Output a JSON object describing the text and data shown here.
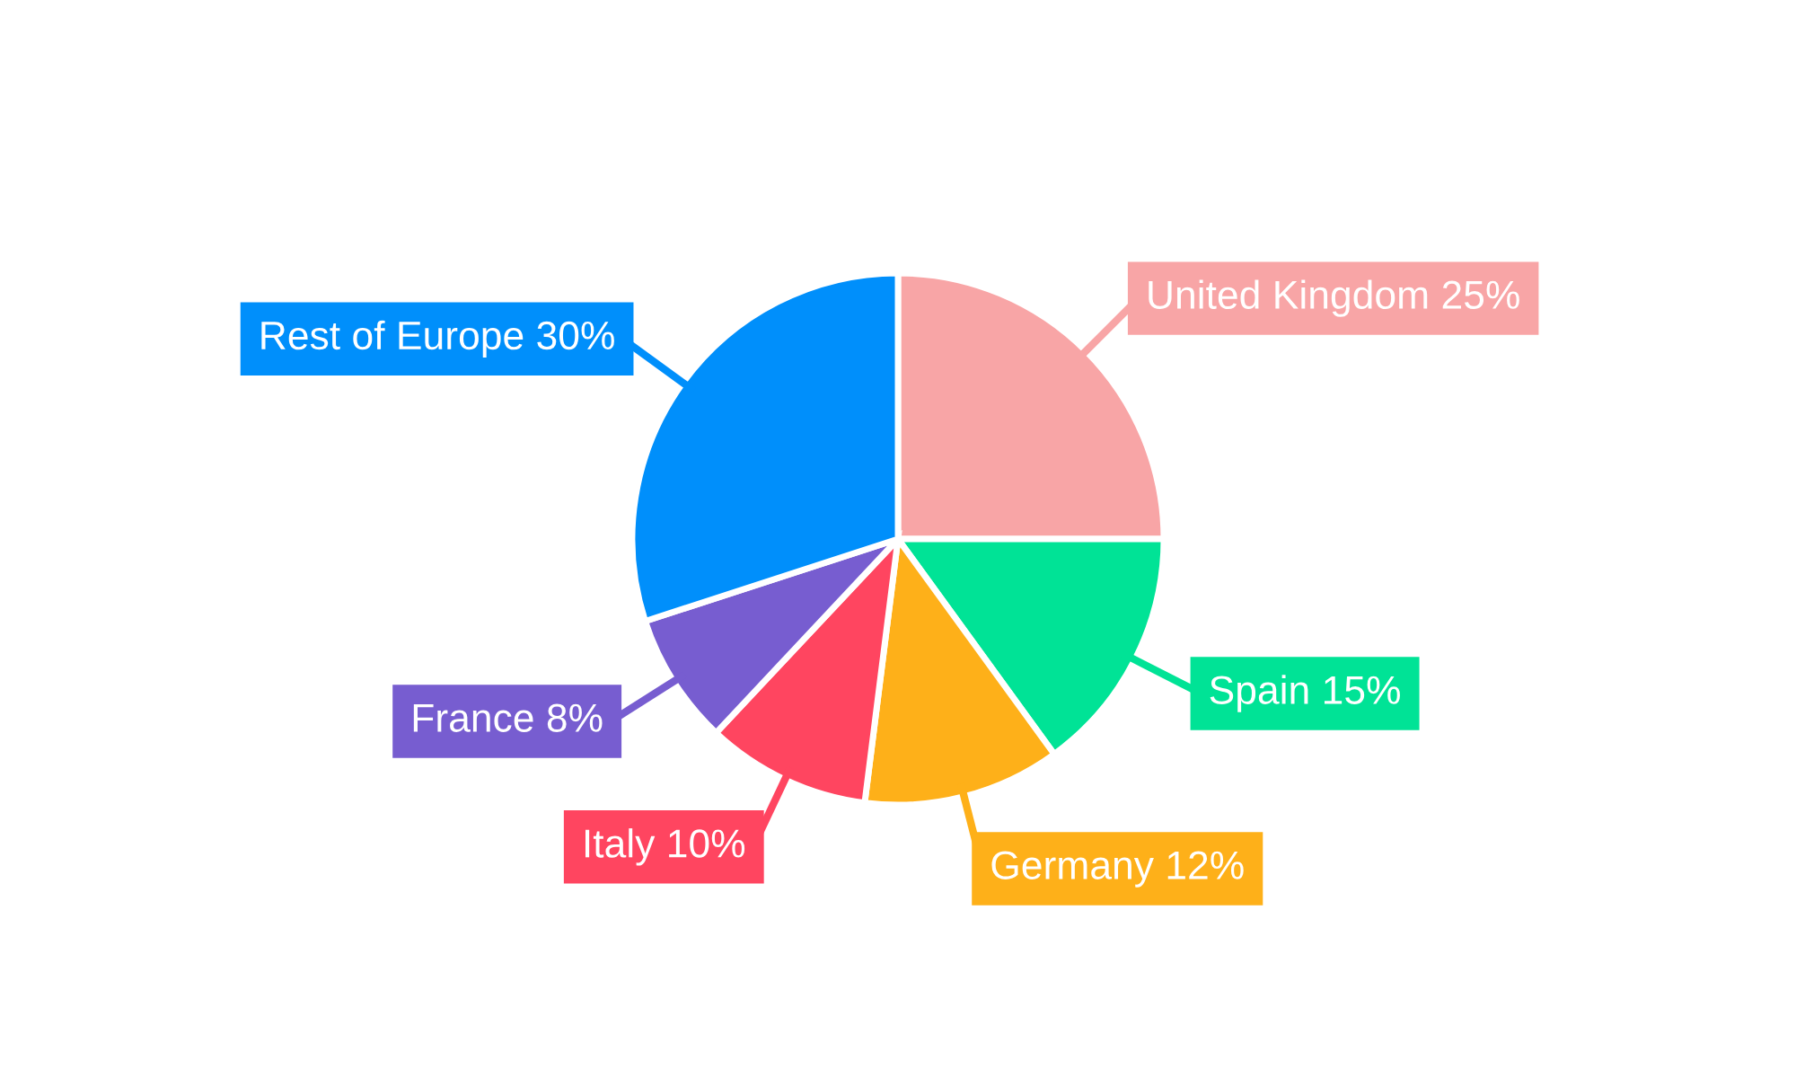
{
  "chart_data": {
    "type": "pie",
    "categories": [
      "United Kingdom",
      "Spain",
      "Germany",
      "Italy",
      "France",
      "Rest of Europe"
    ],
    "values": [
      25,
      15,
      12,
      10,
      8,
      30
    ],
    "value_labels": [
      "25%",
      "15%",
      "12%",
      "10%",
      "8%",
      "30%"
    ],
    "colors": [
      "#f8a5a6",
      "#00e396",
      "#feb019",
      "#ff4560",
      "#775dd0",
      "#008ffb"
    ],
    "legend": false
  }
}
